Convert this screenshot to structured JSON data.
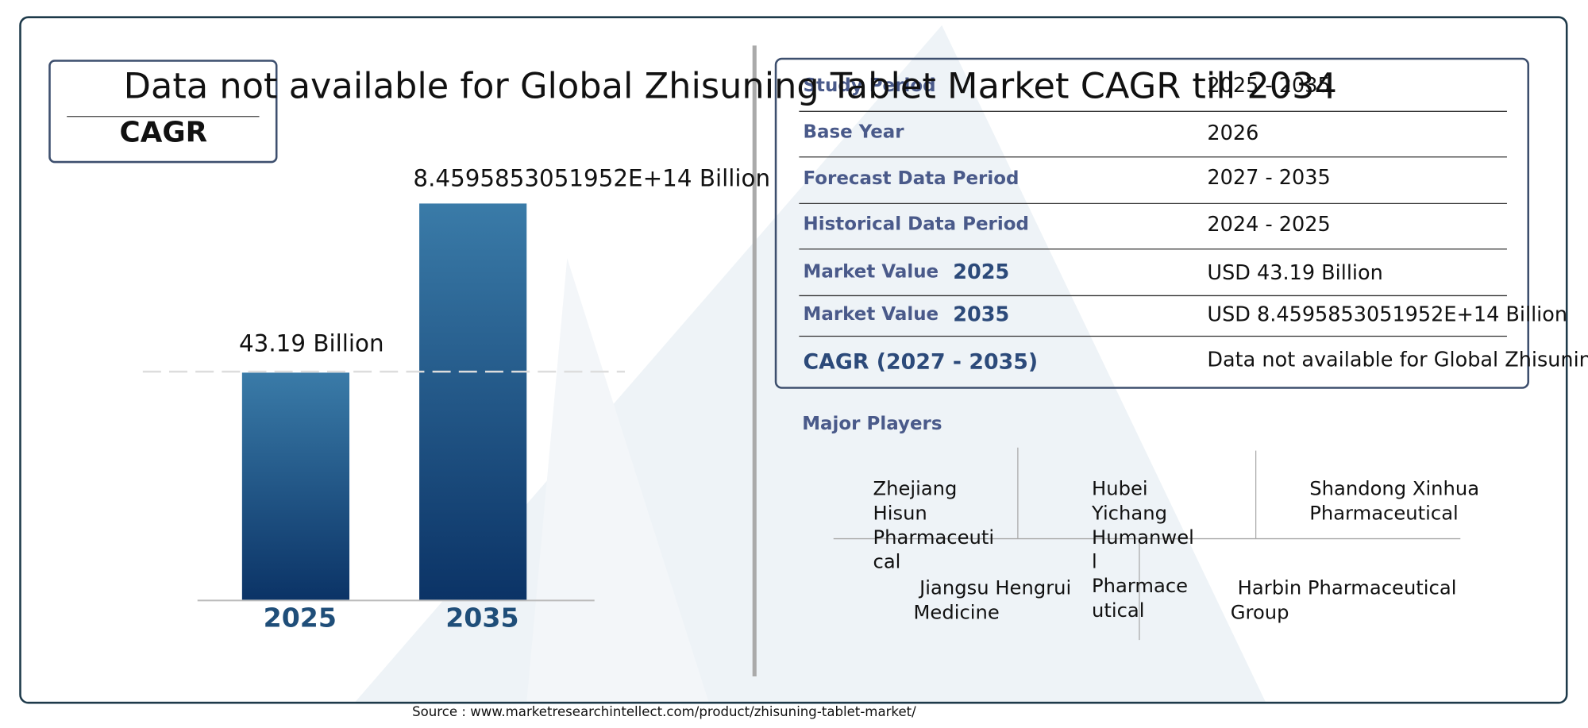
{
  "cagr_box": {
    "text": "Data not available for Global Zhisuning Tablet Market CAGR till 2034",
    "label": "CAGR"
  },
  "bars": [
    {
      "year": "2025",
      "label": "43.19 Billion"
    },
    {
      "year": "2035",
      "label": "8.4595853051952E+14 Billion"
    }
  ],
  "table": {
    "rows": [
      [
        "Study Period",
        "2025 - 2035"
      ],
      [
        "Base Year",
        "2026"
      ],
      [
        "Forecast Data Period",
        "2027 - 2035"
      ],
      [
        "Historical Data Period",
        "2024 - 2025"
      ],
      [
        "Market Value",
        "2025",
        "USD 43.19 Billion"
      ],
      [
        "Market Value",
        "2035",
        "USD 8.4595853051952E+14 Billion"
      ],
      [
        "CAGR (2027 - 2035)",
        "Data not available for Global Zhisuning"
      ]
    ]
  },
  "major_players": {
    "title": "Major Players",
    "names": [
      "Zhejiang Hisun Pharmaceutical",
      "Hubei Yichang Humanwell Pharmaceutical",
      "Shandong Xinhua Pharmaceutical",
      "Jiangsu Hengrui Medicine",
      "Harbin Pharmaceutical Group"
    ]
  },
  "source": "Source : www.marketresearchintellect.com/product/zhisuning-tablet-market/"
}
